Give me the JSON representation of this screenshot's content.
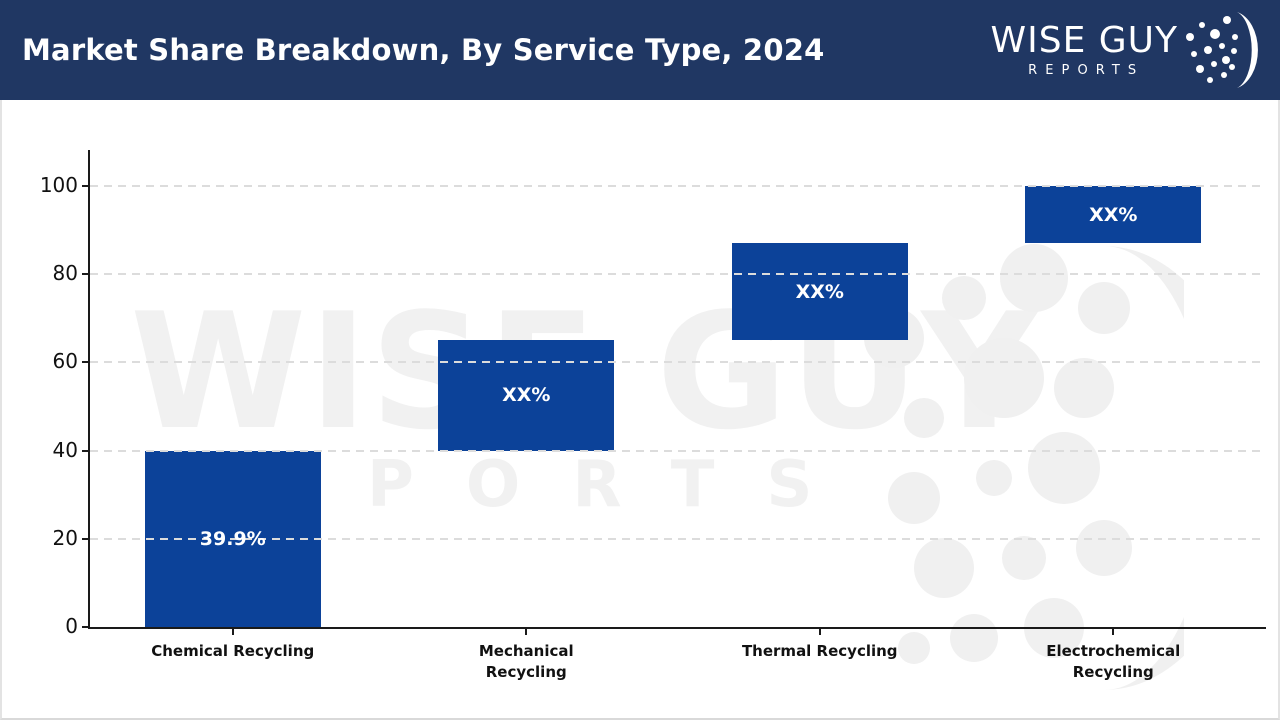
{
  "header": {
    "title": "Market Share Breakdown, By Service Type, 2024",
    "logo": {
      "name": "WISE GUY",
      "sub": "REPORTS"
    }
  },
  "watermark": {
    "line1": "WISE GUY",
    "line2": "REPORTS"
  },
  "chart_data": {
    "type": "bar",
    "variant": "waterfall",
    "title": "Market Share Breakdown, By Service Type, 2024",
    "categories": [
      "Chemical Recycling",
      "Mechanical\nRecycling",
      "Thermal Recycling",
      "Electrochemical\nRecycling"
    ],
    "segments": [
      {
        "category": "Chemical Recycling",
        "label": "39.9%",
        "start": 0,
        "end": 39.9
      },
      {
        "category": "Mechanical Recycling",
        "label": "XX%",
        "start": 40,
        "end": 65
      },
      {
        "category": "Thermal Recycling",
        "label": "XX%",
        "start": 65,
        "end": 87
      },
      {
        "category": "Electrochemical Recycling",
        "label": "XX%",
        "start": 87,
        "end": 100
      }
    ],
    "ylim": [
      0,
      100
    ],
    "yticks": [
      0,
      20,
      40,
      60,
      80,
      100
    ],
    "grid": "horizontal-dashed",
    "legend": "none",
    "bar_color": "#0c4299",
    "bar_label_color": "#ffffff"
  },
  "colors": {
    "header_bg": "#203763",
    "header_text": "#ffffff",
    "bar": "#0c4299",
    "grid": "#dcdcdc",
    "axis": "#1a1a1a",
    "watermark": "#f1f1f1",
    "bottom_rule": "#d9d9d9"
  }
}
